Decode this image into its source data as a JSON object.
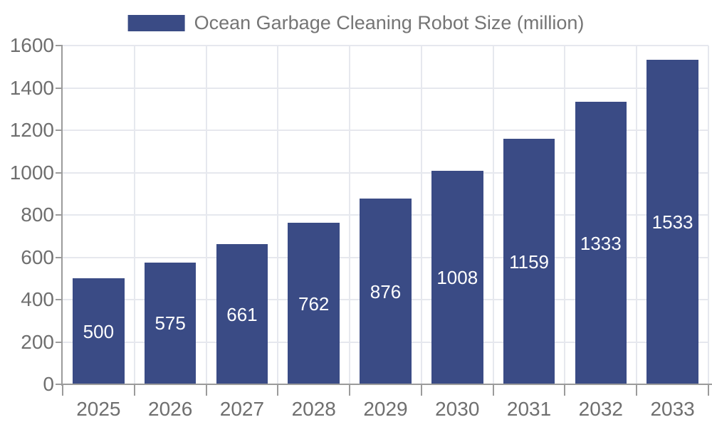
{
  "chart_data": {
    "type": "bar",
    "title": "Ocean Garbage Cleaning Robot Size (million)",
    "categories": [
      "2025",
      "2026",
      "2027",
      "2028",
      "2029",
      "2030",
      "2031",
      "2032",
      "2033"
    ],
    "values": [
      500,
      575,
      661,
      762,
      876,
      1008,
      1159,
      1333,
      1533
    ],
    "series": [
      {
        "name": "Ocean Garbage Cleaning Robot Size (million)",
        "values": [
          500,
          575,
          661,
          762,
          876,
          1008,
          1159,
          1333,
          1533
        ]
      }
    ],
    "xlabel": "",
    "ylabel": "",
    "ylim": [
      0,
      1600
    ],
    "ytick_step": 200,
    "ytick_labels": [
      "0",
      "200",
      "400",
      "600",
      "800",
      "1000",
      "1200",
      "1400",
      "1600"
    ],
    "grid": true,
    "legend_position": "top-center",
    "value_labels_inside_bars": true,
    "colors": {
      "bar": "#3A4B85",
      "bar_label": "#FFFFFF",
      "axis": "#9B9B9B",
      "gridline": "#E6E8EE",
      "tick_text": "#6F6F6F",
      "legend_text": "#757575",
      "background": "#FFFFFF"
    }
  }
}
